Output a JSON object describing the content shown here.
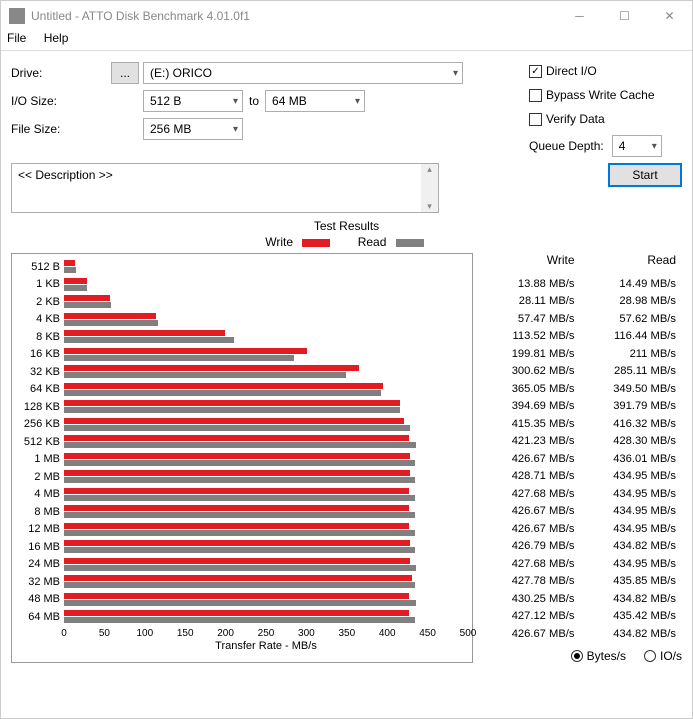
{
  "window": {
    "title": "Untitled - ATTO Disk Benchmark 4.01.0f1"
  },
  "menu": {
    "file": "File",
    "help": "Help"
  },
  "form": {
    "drive_label": "Drive:",
    "drive_browse": "...",
    "drive_value": "(E:) ORICO",
    "io_label": "I/O Size:",
    "io_from": "512 B",
    "to": "to",
    "io_to": "64 MB",
    "fs_label": "File Size:",
    "fs_value": "256 MB",
    "direct_io": "Direct I/O",
    "bypass": "Bypass Write Cache",
    "verify": "Verify Data",
    "qd_label": "Queue Depth:",
    "qd_value": "4"
  },
  "desc": {
    "placeholder": "<< Description >>",
    "start": "Start"
  },
  "results": {
    "title": "Test Results",
    "legend_write": "Write",
    "legend_read": "Read",
    "hdr_write": "Write",
    "hdr_read": "Read",
    "x_label": "Transfer Rate - MB/s",
    "x_max": 500,
    "x_ticks": [
      0,
      50,
      100,
      150,
      200,
      250,
      300,
      350,
      400,
      450,
      500
    ],
    "unit_bytes": "Bytes/s",
    "unit_ios": "IO/s",
    "colors": {
      "write": "#e31b23",
      "read": "#808080"
    },
    "rows": [
      {
        "label": "512 B",
        "write": 13.88,
        "read": 14.49,
        "write_s": "13.88 MB/s",
        "read_s": "14.49 MB/s"
      },
      {
        "label": "1 KB",
        "write": 28.11,
        "read": 28.98,
        "write_s": "28.11 MB/s",
        "read_s": "28.98 MB/s"
      },
      {
        "label": "2 KB",
        "write": 57.47,
        "read": 57.62,
        "write_s": "57.47 MB/s",
        "read_s": "57.62 MB/s"
      },
      {
        "label": "4 KB",
        "write": 113.52,
        "read": 116.44,
        "write_s": "113.52 MB/s",
        "read_s": "116.44 MB/s"
      },
      {
        "label": "8 KB",
        "write": 199.81,
        "read": 211,
        "write_s": "199.81 MB/s",
        "read_s": "211 MB/s"
      },
      {
        "label": "16 KB",
        "write": 300.62,
        "read": 285.11,
        "write_s": "300.62 MB/s",
        "read_s": "285.11 MB/s"
      },
      {
        "label": "32 KB",
        "write": 365.05,
        "read": 349.5,
        "write_s": "365.05 MB/s",
        "read_s": "349.50 MB/s"
      },
      {
        "label": "64 KB",
        "write": 394.69,
        "read": 391.79,
        "write_s": "394.69 MB/s",
        "read_s": "391.79 MB/s"
      },
      {
        "label": "128 KB",
        "write": 415.35,
        "read": 416.32,
        "write_s": "415.35 MB/s",
        "read_s": "416.32 MB/s"
      },
      {
        "label": "256 KB",
        "write": 421.23,
        "read": 428.3,
        "write_s": "421.23 MB/s",
        "read_s": "428.30 MB/s"
      },
      {
        "label": "512 KB",
        "write": 426.67,
        "read": 436.01,
        "write_s": "426.67 MB/s",
        "read_s": "436.01 MB/s"
      },
      {
        "label": "1 MB",
        "write": 428.71,
        "read": 434.95,
        "write_s": "428.71 MB/s",
        "read_s": "434.95 MB/s"
      },
      {
        "label": "2 MB",
        "write": 427.68,
        "read": 434.95,
        "write_s": "427.68 MB/s",
        "read_s": "434.95 MB/s"
      },
      {
        "label": "4 MB",
        "write": 426.67,
        "read": 434.95,
        "write_s": "426.67 MB/s",
        "read_s": "434.95 MB/s"
      },
      {
        "label": "8 MB",
        "write": 426.67,
        "read": 434.95,
        "write_s": "426.67 MB/s",
        "read_s": "434.95 MB/s"
      },
      {
        "label": "12 MB",
        "write": 426.79,
        "read": 434.82,
        "write_s": "426.79 MB/s",
        "read_s": "434.82 MB/s"
      },
      {
        "label": "16 MB",
        "write": 427.68,
        "read": 434.95,
        "write_s": "427.68 MB/s",
        "read_s": "434.95 MB/s"
      },
      {
        "label": "24 MB",
        "write": 427.78,
        "read": 435.85,
        "write_s": "427.78 MB/s",
        "read_s": "435.85 MB/s"
      },
      {
        "label": "32 MB",
        "write": 430.25,
        "read": 434.82,
        "write_s": "430.25 MB/s",
        "read_s": "434.82 MB/s"
      },
      {
        "label": "48 MB",
        "write": 427.12,
        "read": 435.42,
        "write_s": "427.12 MB/s",
        "read_s": "435.42 MB/s"
      },
      {
        "label": "64 MB",
        "write": 426.67,
        "read": 434.82,
        "write_s": "426.67 MB/s",
        "read_s": "434.82 MB/s"
      }
    ]
  }
}
